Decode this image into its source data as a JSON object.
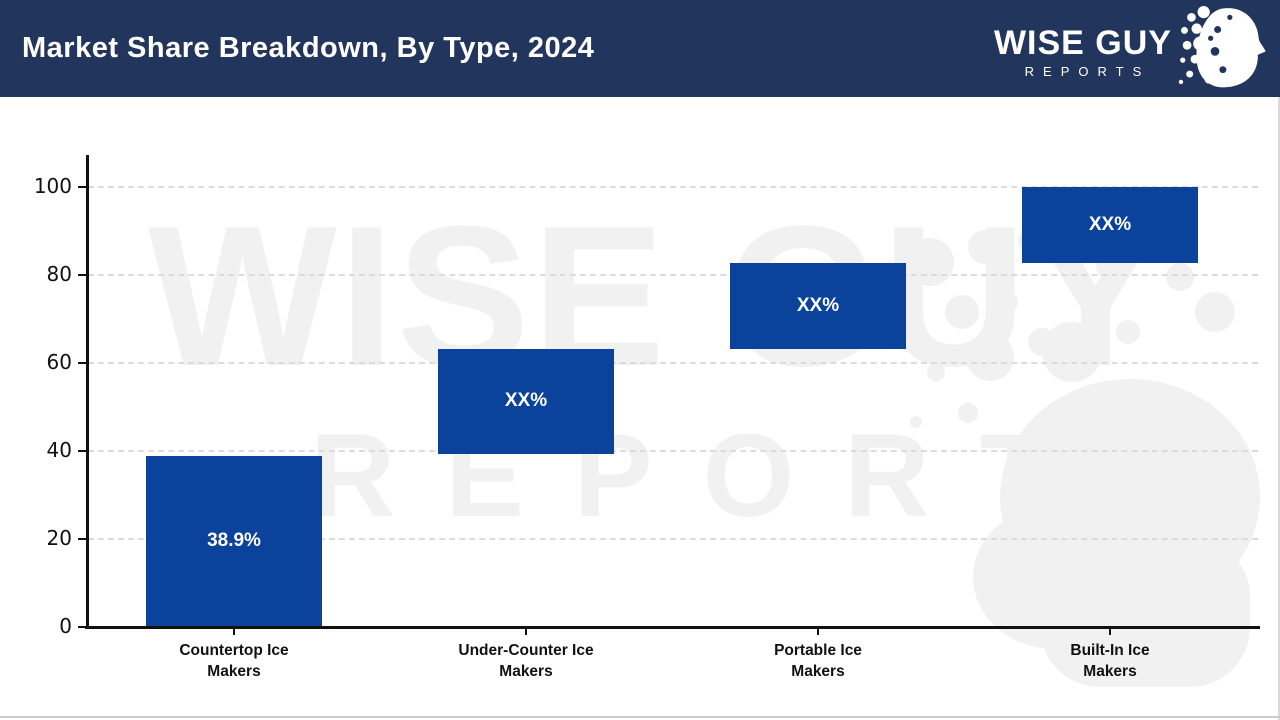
{
  "header": {
    "title": "Market Share Breakdown, By Type, 2024",
    "logo": {
      "line1": "WISE GUY",
      "line2": "REPORTS",
      "face_icon": "dotted-face-profile"
    }
  },
  "watermark": {
    "line1": "WISE GUY",
    "line2": "REPORTS"
  },
  "colors": {
    "header_bg": "#22355c",
    "bar_fill": "#0a429c",
    "bar_label": "#ffffff",
    "gridline": "#dcdcdc",
    "axis": "#111111",
    "watermark": "#f1f1f1",
    "title_text": "#ffffff"
  },
  "chart_data": {
    "type": "bar",
    "subtype": "floating_waterfall",
    "title": "Market Share Breakdown, By Type, 2024",
    "xlabel": "",
    "ylabel": "",
    "ylim": [
      0,
      106
    ],
    "yticks": [
      0,
      20,
      40,
      60,
      80,
      100
    ],
    "grid": "horizontal-dashed",
    "legend": "none",
    "categories": [
      "Countertop Ice Makers",
      "Under-Counter Ice Makers",
      "Portable Ice Makers",
      "Built-In Ice Makers"
    ],
    "series": [
      {
        "category": "Countertop Ice Makers",
        "label_lines": [
          "Countertop Ice",
          "Makers"
        ],
        "start": 0,
        "end": 38.9,
        "value_label": "38.9%"
      },
      {
        "category": "Under-Counter Ice Makers",
        "label_lines": [
          "Under-Counter Ice",
          "Makers"
        ],
        "start": 39.3,
        "end": 63.2,
        "value_label": "XX%"
      },
      {
        "category": "Portable Ice Makers",
        "label_lines": [
          "Portable Ice",
          "Makers"
        ],
        "start": 63.2,
        "end": 82.7,
        "value_label": "XX%"
      },
      {
        "category": "Built-In Ice Makers",
        "label_lines": [
          "Built-In Ice",
          "Makers"
        ],
        "start": 82.7,
        "end": 100,
        "value_label": "XX%"
      }
    ]
  }
}
